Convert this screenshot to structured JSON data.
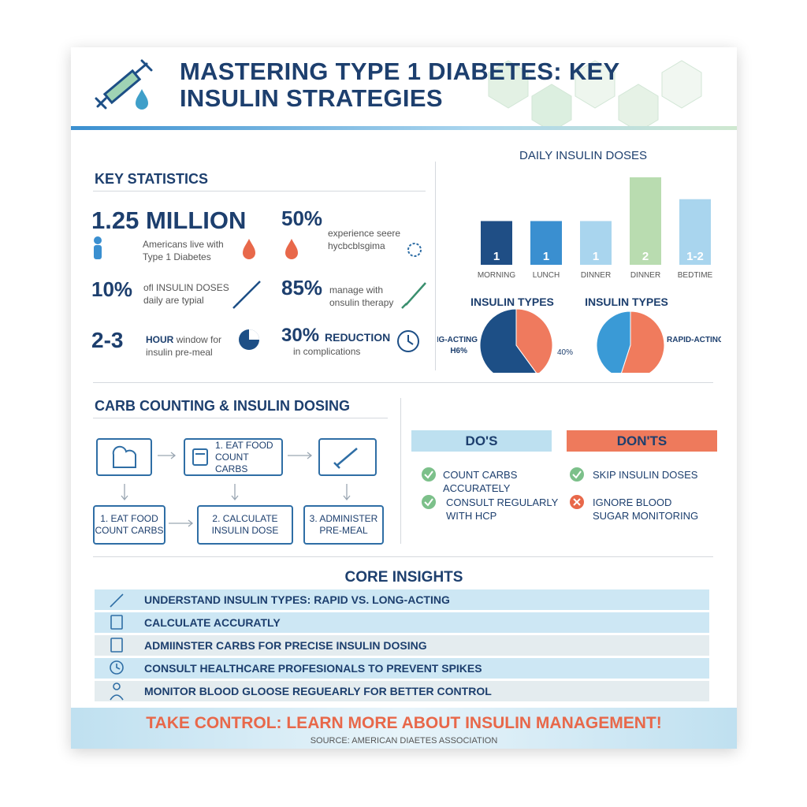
{
  "header": {
    "title": "MASTERING TYPE 1 DIABETES: KEY INSULIN STRATEGIES"
  },
  "key_statistics": {
    "title": "KEY STATISTICS",
    "items": [
      {
        "value": "1.25 MILLION",
        "text": "Americans live with Type 1 Diabetes"
      },
      {
        "value": "50%",
        "text": "experience seere hycbcblsgima"
      },
      {
        "value": "10%",
        "text": "ofl INSULIN DOSES daily are typial"
      },
      {
        "value": "85%",
        "text": "manage with onsulin therapy"
      },
      {
        "value": "2-3",
        "label": "HOUR",
        "text": "window for insulin pre-meal"
      },
      {
        "value": "30%",
        "label": "REDUCTION",
        "text": "in complications"
      }
    ]
  },
  "chart_data": [
    {
      "type": "bar",
      "title": "DAILY INSULIN DOSES",
      "categories": [
        "MORNING",
        "LUNCH",
        "DINNER",
        "DINNER",
        "BEDTIME"
      ],
      "values": [
        1,
        1,
        1,
        2,
        1.5
      ],
      "value_labels": [
        "1",
        "1",
        "1",
        "2",
        "1-2"
      ],
      "colors": [
        "#1f4e85",
        "#3a8fd0",
        "#a9d5ee",
        "#b9dcb0",
        "#a9d5ee"
      ]
    },
    {
      "type": "pie",
      "title": "INSULIN TYPES",
      "categories": [
        "LONG-ACTING",
        null
      ],
      "values": [
        60,
        40
      ],
      "value_labels": [
        null,
        "40%"
      ],
      "annotation": "H6%",
      "colors": [
        "#1d4f86",
        "#ef7a5e"
      ]
    },
    {
      "type": "pie",
      "title": "INSULIN TYPES",
      "categories": [
        null,
        "RAPID-ACTING"
      ],
      "values": [
        45,
        55
      ],
      "colors": [
        "#3a9ad6",
        "#f07b5d"
      ]
    }
  ],
  "carb_counting": {
    "title": "CARB COUNTING & INSULIN DOSING",
    "top_step": "1. EAT FOOD COUNT CARBS",
    "steps": [
      "1. EAT FOOD COUNT CARBS",
      "2. CALCULATE INSULIN DOSE",
      "3. ADMINISTER PRE-MEAL"
    ]
  },
  "dos_donts": {
    "dos_title": "DO'S",
    "donts_title": "DON'TS",
    "dos": [
      "COUNT CARBS ACCURATELY",
      "CONSULT REGULARLY WITH HCP"
    ],
    "donts": [
      "SKIP INSULIN DOSES",
      "IGNORE BLOOD SUGAR MONITORING"
    ]
  },
  "core_insights": {
    "title": "CORE INSIGHTS",
    "items": [
      "UNDERSTAND INSULIN TYPES: RAPID VS. LONG-ACTING",
      "CALCULATE ACCURATLY",
      "ADMIINSTER CARBS FOR PRECISE INSULIN DOSING",
      "CONSULT HEALTHCARE PROFESIONALS TO PREVENT SPIKES",
      "MONITOR BLOOD GLOOSE REGUEARLY FOR BETTER CONTROL"
    ]
  },
  "footer": {
    "cta": "TAKE CONTROL: LEARN MORE ABOUT INSULIN MANAGEMENT!",
    "source": "SOURCE: AMERICAN DIAETES ASSOCIATION"
  }
}
